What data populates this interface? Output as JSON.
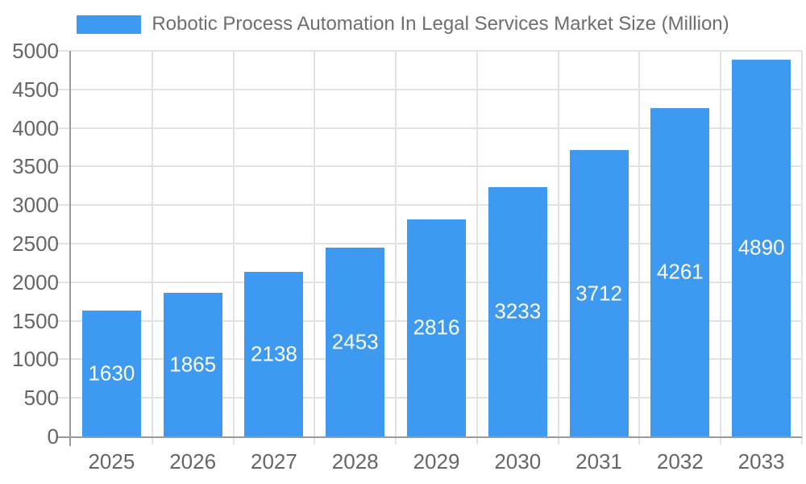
{
  "chart_data": {
    "type": "bar",
    "title": "Robotic Process Automation In Legal Services Market Size (Million)",
    "legend_label": "Robotic Process Automation In Legal Services Market Size (Million)",
    "legend_position": "top",
    "categories": [
      "2025",
      "2026",
      "2027",
      "2028",
      "2029",
      "2030",
      "2031",
      "2032",
      "2033"
    ],
    "values": [
      1630,
      1865,
      2138,
      2453,
      2816,
      3233,
      3712,
      4261,
      4890
    ],
    "series": [
      {
        "name": "Robotic Process Automation In Legal Services Market Size (Million)",
        "values": [
          1630,
          1865,
          2138,
          2453,
          2816,
          3233,
          3712,
          4261,
          4890
        ]
      }
    ],
    "xlabel": "",
    "ylabel": "",
    "ylim": [
      0,
      5000
    ],
    "ytick_step": 500,
    "ytick_labels": [
      "0",
      "500",
      "1000",
      "1500",
      "2000",
      "2500",
      "3000",
      "3500",
      "4000",
      "4500",
      "5000"
    ],
    "grid": true,
    "colors": {
      "bar": "#3d9af0",
      "bar_value_label": "#ffffff",
      "tick_text": "#666666",
      "legend_text": "#6e6e6e",
      "grid_line": "#e3e3e3",
      "axis_line": "#9b9b9b",
      "background": "#ffffff"
    }
  }
}
